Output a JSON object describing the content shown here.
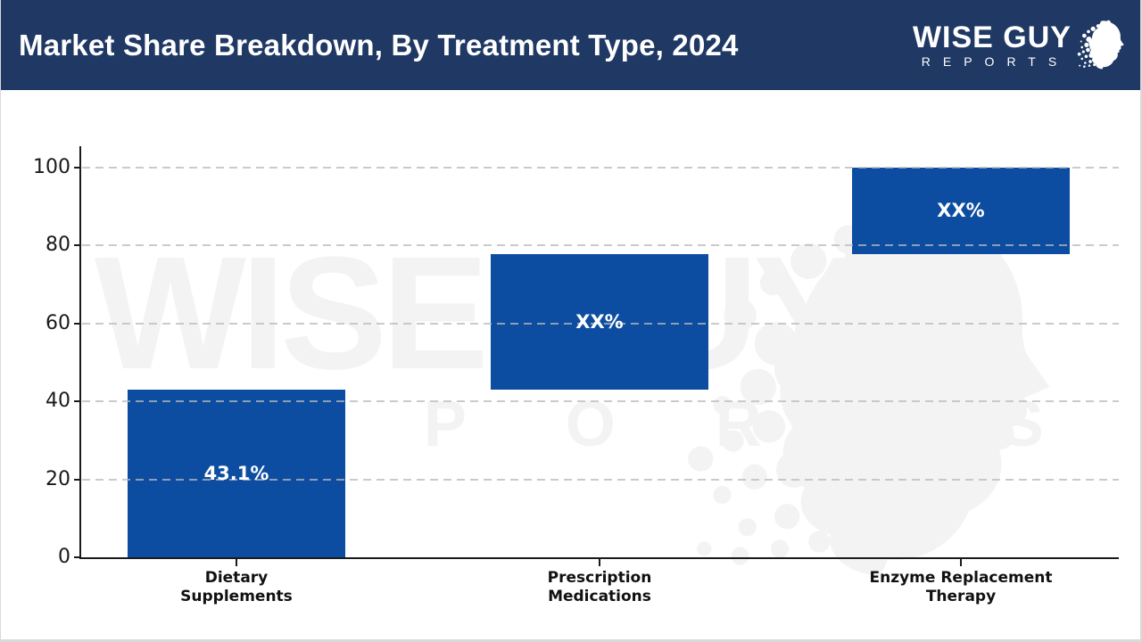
{
  "header": {
    "title": "Market Share Breakdown, By Treatment Type, 2024",
    "logo_primary": "WISE GUY",
    "logo_secondary": "REPORTS"
  },
  "watermark": {
    "primary": "WISE GUY",
    "secondary": "R E P O R T S"
  },
  "chart_data": {
    "type": "bar",
    "variant": "waterfall",
    "title": "Market Share Breakdown, By Treatment Type, 2024",
    "categories": [
      "Dietary Supplements",
      "Prescription Medications",
      "Enzyme Replacement Therapy"
    ],
    "category_label_lines": [
      [
        "Dietary",
        "Supplements"
      ],
      [
        "Prescription",
        "Medications"
      ],
      [
        "Enzyme Replacement",
        "Therapy"
      ]
    ],
    "bars": [
      {
        "category": "Dietary Supplements",
        "start": 0,
        "end": 43.1,
        "label": "43.1%"
      },
      {
        "category": "Prescription Medications",
        "start": 43.1,
        "end": 77.9,
        "label": "XX%"
      },
      {
        "category": "Enzyme Replacement Therapy",
        "start": 77.9,
        "end": 100,
        "label": "XX%"
      }
    ],
    "xlabel": "",
    "ylabel": "",
    "ylim": [
      0,
      100
    ],
    "yticks": [
      0,
      20,
      40,
      60,
      80,
      100
    ],
    "grid": {
      "axis": "y",
      "style": "dashed"
    },
    "legend": null,
    "colors": {
      "bar": "#0c4da2",
      "bar_label": "#ffffff",
      "header_bg": "#1f3864",
      "axis": "#1a1a1a",
      "watermark": "#f3f3f3"
    }
  }
}
